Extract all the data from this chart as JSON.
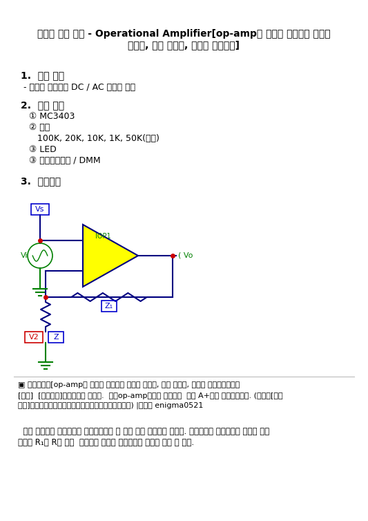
{
  "title_line1": "임상의 공학 실험 - Operational Amplifier[op-amp를 이용한 기본적인 비반전",
  "title_line2": "증폭기, 반전 증폭기, 비교기 실험결과]",
  "section1_title": "1.  실험 목적",
  "section1_body": " - 증폭기 회로에서 DC / AC 전압을 측정",
  "section2_title": "2.  실험 장비",
  "section2_item1": "   ① MC3403",
  "section2_item2": "   ② 저항",
  "section2_item3": "      100K, 20K, 10K, 1K, 50K(가변)",
  "section2_item4": "   ③ LED",
  "section2_item5": "   ③ 오실로스코프 / DMM",
  "section3_title": "3.  이론개요",
  "bullet_text": "▣ 반전증폭기[op-amp를 이용한 기본적인 비반전 증폭기, 반전 증폭기, 비교기 실험결과입니다",
  "src1": "[출처]  [임상실험]결과레포트 입니다.  전자op-amp이용한 기본적인  회로 A+받은 레포트입니다. (출루션[미드",
  "src2": "영어]회회토익스피킹토플지막레포트자격증공모전추천) |적성자 enigma0521",
  "body1": "  반전 증폭기는 상수이득을 갖는증폭회로 중 가장 널리 사용되는 것이다. 출력신호는 입력신호의 위상을 반전",
  "body2": "시키고 R₁과 R에 의해  주어지는 상수를 입력신호에 곱하여 얻을 수 있다.",
  "bg_color": "#ffffff",
  "text_color": "#000000",
  "circuit": {
    "opamp_fill": "#ffff00",
    "opamp_stroke": "#000080",
    "wire": "#000080",
    "vs_label": "#0000cd",
    "vi_label": "#008000",
    "vo_label": "#008000",
    "iop1_label": "#008000",
    "z_label": "#0000cd",
    "v2_label": "#cc0000",
    "box_vs": "#0000cd",
    "box_z1": "#0000cd",
    "box_v2": "#cc0000",
    "box_z2": "#0000cd",
    "gnd": "#008000",
    "dot": "#cc0000"
  }
}
